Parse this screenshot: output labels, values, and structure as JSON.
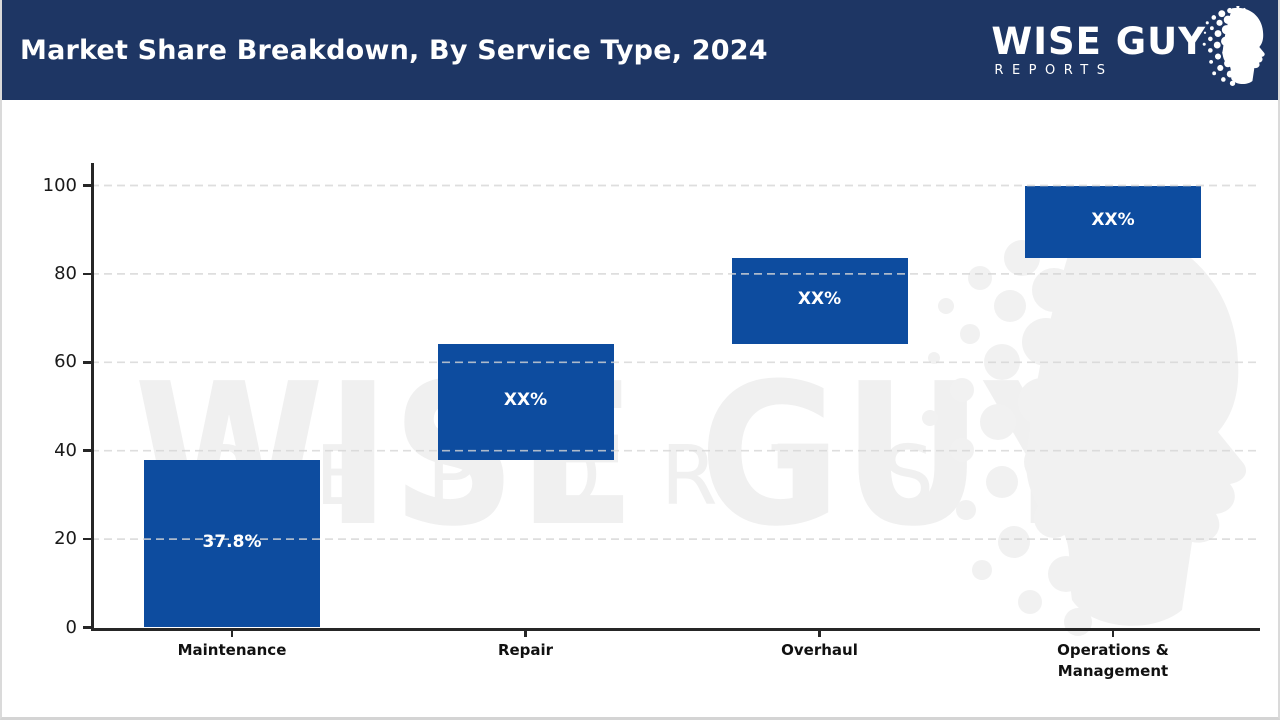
{
  "header": {
    "title": "Market Share Breakdown, By Service Type, 2024",
    "logo": {
      "wordmark": "WISE GUY",
      "subtext": "REPORTS"
    }
  },
  "watermark": {
    "wordmark": "WISE GUY",
    "subtext": "REPORTS"
  },
  "colors": {
    "header_bg": "#1e3664",
    "bar": "#0d4c9f",
    "grid": "#d6d6d6",
    "axis": "#262626",
    "bar_label": "#ffffff",
    "watermark": "#f0f0f0",
    "page_border": "#dadada"
  },
  "chart_data": {
    "type": "bar",
    "variant": "waterfall",
    "title": "Market Share Breakdown, By Service Type, 2024",
    "categories": [
      "Maintenance",
      "Repair",
      "Overhaul",
      "Operations &\nManagement"
    ],
    "segments": [
      {
        "start": 0,
        "end": 37.8
      },
      {
        "start": 37.8,
        "end": 64.2
      },
      {
        "start": 64.2,
        "end": 83.6
      },
      {
        "start": 83.6,
        "end": 100
      }
    ],
    "bar_labels": [
      "37.8%",
      "XX%",
      "XX%",
      "XX%"
    ],
    "ylim": [
      0,
      100
    ],
    "yticks": [
      0,
      20,
      40,
      60,
      80,
      100
    ],
    "xlabel": "",
    "ylabel": "",
    "grid": "horizontal dashed",
    "legend": "none"
  }
}
